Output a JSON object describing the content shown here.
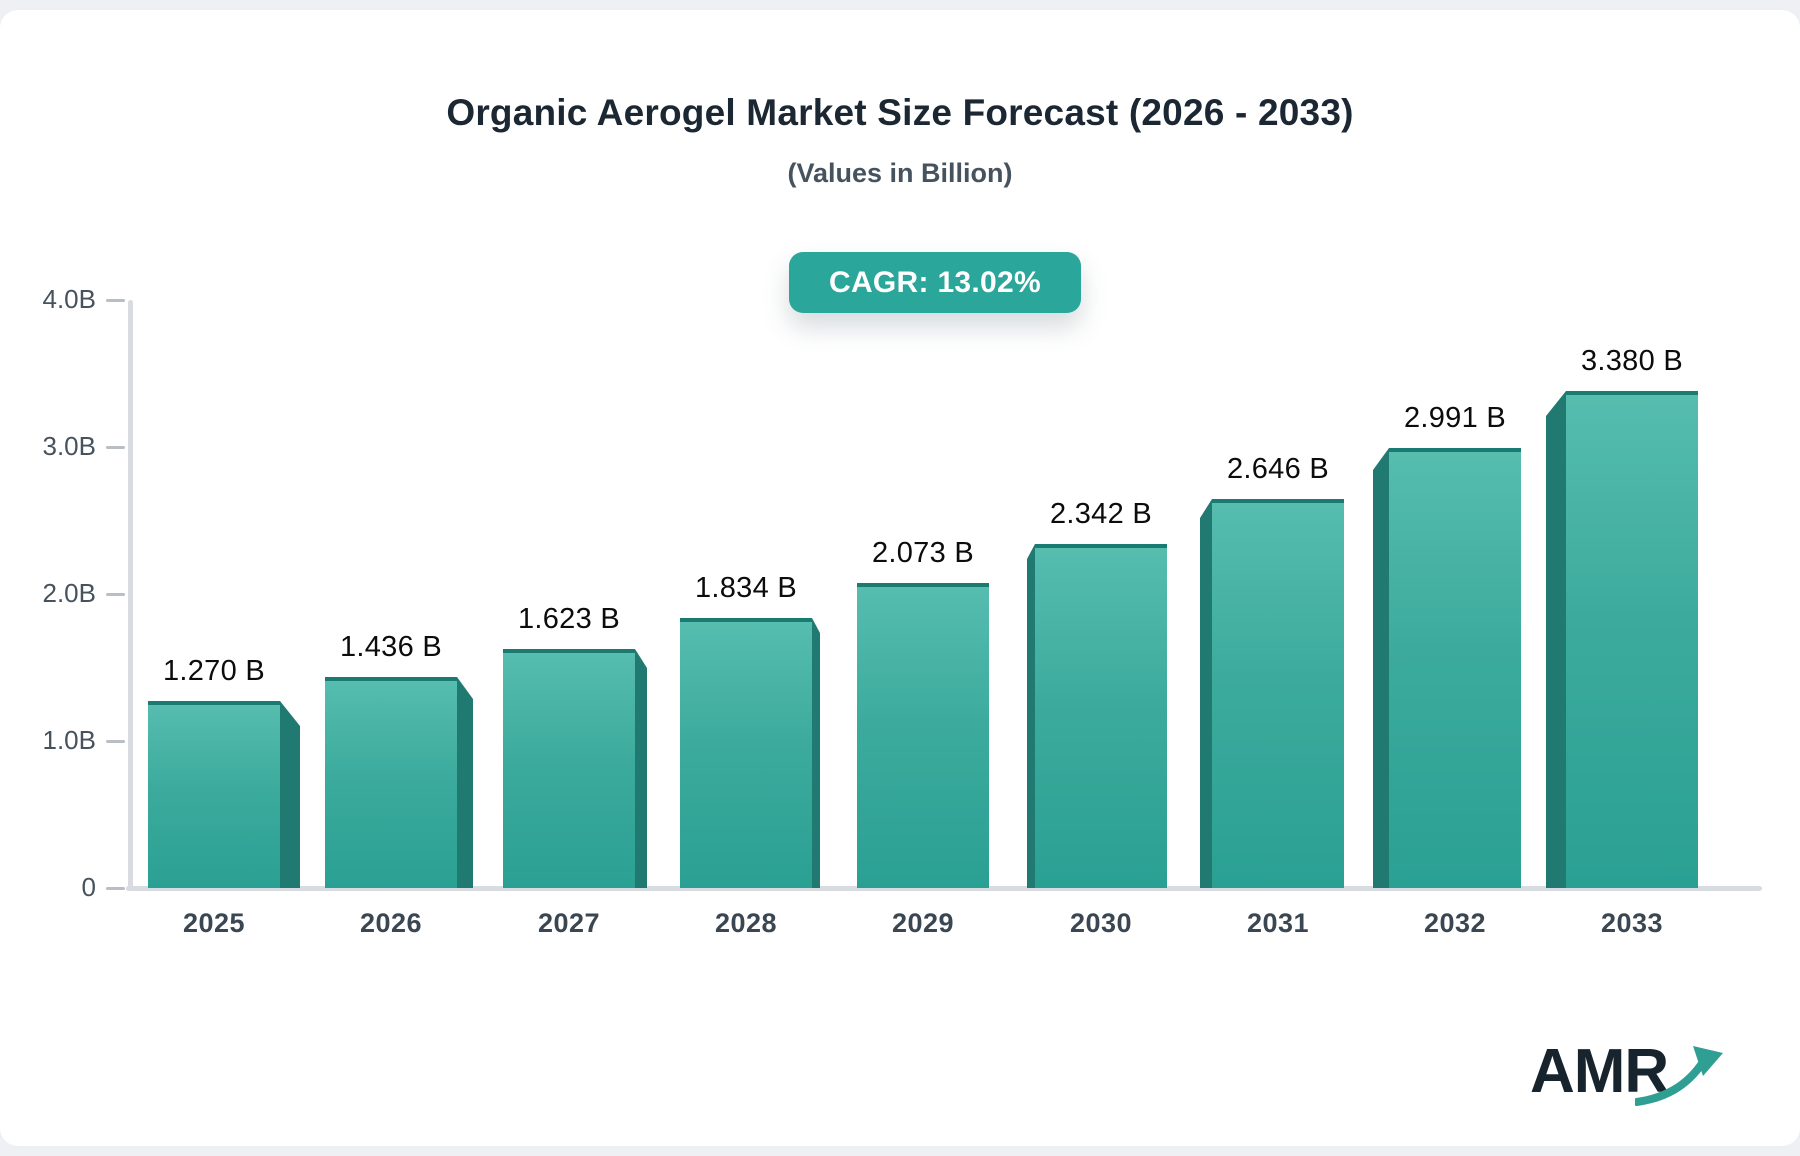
{
  "page": {
    "brand": "AMR"
  },
  "header": {
    "title": "Organic Aerogel Market Size Forecast (2026 - 2033)",
    "subtitle": "(Values in Billion)",
    "cagr_badge": "CAGR: 13.02%"
  },
  "chart_data": {
    "type": "bar",
    "title": "Organic Aerogel Market Size Forecast (2026 - 2033)",
    "subtitle": "(Values in Billion)",
    "cagr_percent": "13.02%",
    "categories": [
      "2025",
      "2026",
      "2027",
      "2028",
      "2029",
      "2030",
      "2031",
      "2032",
      "2033"
    ],
    "values": [
      1.27,
      1.436,
      1.623,
      1.834,
      2.073,
      2.342,
      2.646,
      2.991,
      3.38
    ],
    "bar_labels": [
      "1.270 B",
      "1.436 B",
      "1.623 B",
      "1.834 B",
      "2.073 B",
      "2.342 B",
      "2.646 B",
      "2.991 B",
      "3.380 B"
    ],
    "xlabel": "",
    "ylabel": "",
    "ylim": [
      0,
      4.0
    ],
    "ytick_labels_bottom_up": [
      "0",
      "1.0B",
      "2.0B",
      "3.0B",
      "4.0B"
    ],
    "grid": false,
    "legend": "none",
    "bar_color": "#3aaf9f",
    "bar_color_dark_side": "#217a72",
    "accent_color": "#2aa69b",
    "style": "3d-extruded bars with central perspective"
  }
}
